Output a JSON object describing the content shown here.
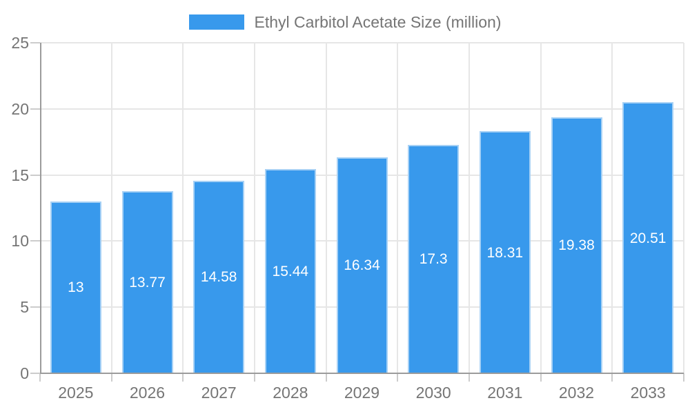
{
  "chart_data": {
    "type": "bar",
    "title": "",
    "categories": [
      "2025",
      "2026",
      "2027",
      "2028",
      "2029",
      "2030",
      "2031",
      "2032",
      "2033"
    ],
    "series": [
      {
        "name": "Ethyl Carbitol Acetate Size (million)",
        "values": [
          13,
          13.77,
          14.58,
          15.44,
          16.34,
          17.3,
          18.31,
          19.38,
          20.51
        ]
      }
    ],
    "value_labels": [
      "13",
      "13.77",
      "14.58",
      "15.44",
      "16.34",
      "17.3",
      "18.31",
      "19.38",
      "20.51"
    ],
    "xlabel": "",
    "ylabel": "",
    "ylim": [
      0,
      25
    ],
    "yticks": [
      0,
      5,
      10,
      15,
      20,
      25
    ],
    "grid": true,
    "legend_position": "top",
    "value_label_position": "center-of-bar",
    "colors": {
      "bar": "#3899EC",
      "bar_border": "#A7D1F5",
      "grid": "#E6E6E6",
      "axis": "#9B9B9B",
      "tick": "#CCCCCC",
      "axis_text": "#757575",
      "value_text": "#FFFFFF",
      "background": "#FFFFFF"
    }
  }
}
